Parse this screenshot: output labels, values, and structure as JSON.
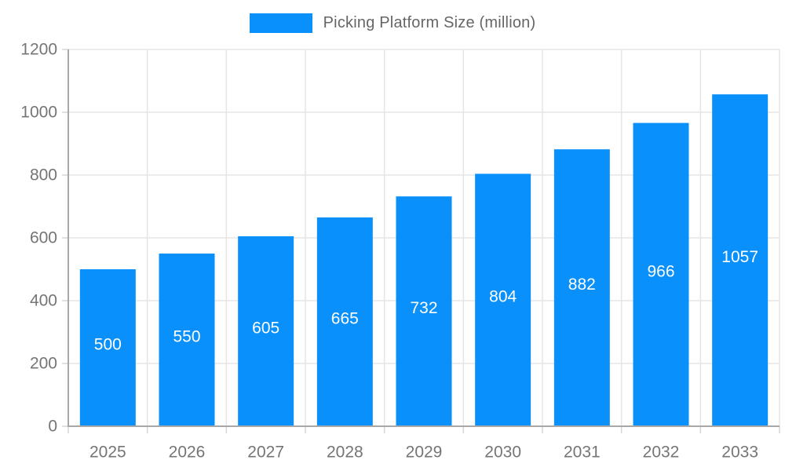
{
  "chart_data": {
    "type": "bar",
    "title": "",
    "legend_position": "top-center",
    "categories": [
      "2025",
      "2026",
      "2027",
      "2028",
      "2029",
      "2030",
      "2031",
      "2032",
      "2033"
    ],
    "series": [
      {
        "name": "Picking Platform Size (million)",
        "values": [
          500,
          550,
          605,
          665,
          732,
          804,
          882,
          966,
          1057
        ]
      }
    ],
    "xlabel": "",
    "ylabel": "",
    "ylim": [
      0,
      1200
    ],
    "yticks": [
      0,
      200,
      400,
      600,
      800,
      1000,
      1200
    ],
    "grid": true,
    "value_labels": "centered-inside-bars",
    "colors": {
      "bar": "#0a90fa",
      "value_label": "#ffffff",
      "axis_line": "#a8a8a8",
      "grid_line": "#e5e5e5",
      "tick_mark": "#d6d6d6",
      "axis_text": "#757575",
      "legend_text": "#666666"
    }
  }
}
